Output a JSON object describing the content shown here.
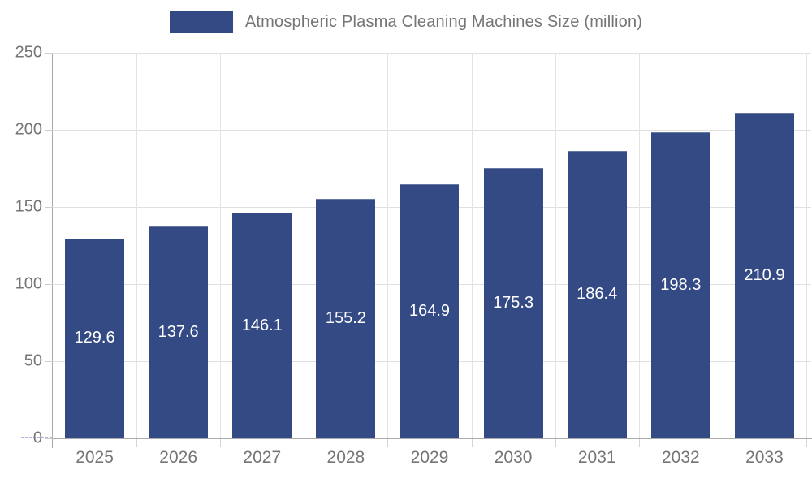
{
  "chart_data": {
    "type": "bar",
    "title": "Atmospheric Plasma Cleaning Machines Size (million)",
    "categories": [
      "2025",
      "2026",
      "2027",
      "2028",
      "2029",
      "2030",
      "2031",
      "2032",
      "2033"
    ],
    "values": [
      129.6,
      137.6,
      146.1,
      155.2,
      164.9,
      175.3,
      186.4,
      198.3,
      210.9
    ],
    "xlabel": "",
    "ylabel": "",
    "ylim": [
      0,
      250
    ],
    "yticks": [
      0,
      50,
      100,
      150,
      200,
      250
    ],
    "grid": true,
    "legend_position": "top",
    "colors": {
      "bar": "#344a85",
      "value_label": "#ffffff",
      "axis_text": "#757575",
      "gridline": "#e0e0e0",
      "axis_line": "#a9a9a9"
    }
  }
}
